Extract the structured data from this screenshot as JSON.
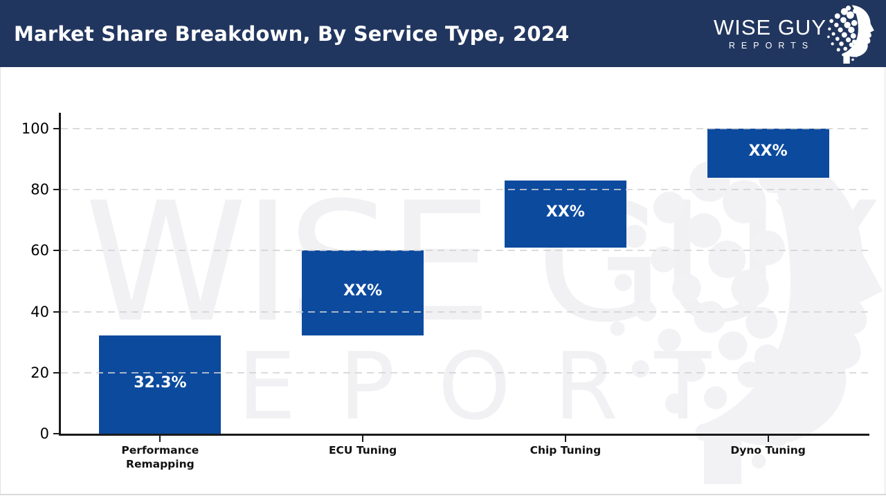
{
  "header": {
    "title": "Market Share Breakdown, By Service Type, 2024",
    "logo": {
      "line1": "WISE GUY",
      "line2": "REPORTS"
    }
  },
  "watermark": {
    "line1": "WISE GUY",
    "line2": "REPORTS"
  },
  "colors": {
    "header_bg": "#21365f",
    "bar_blue": "#0c4a9e",
    "watermark_gray": "#f1f1f4",
    "gridline": "#d9d9d9",
    "axis": "#1a1a1a"
  },
  "chart_data": {
    "type": "bar",
    "subtype": "waterfall",
    "title": "Market Share Breakdown, By Service Type, 2024",
    "categories": [
      "Performance Remapping",
      "ECU Tuning",
      "Chip Tuning",
      "Dyno Tuning"
    ],
    "category_label_lines": [
      [
        "Performance",
        "Remapping"
      ],
      [
        "ECU Tuning"
      ],
      [
        "Chip Tuning"
      ],
      [
        "Dyno Tuning"
      ]
    ],
    "segments": [
      {
        "category": "Performance Remapping",
        "from": 0,
        "to": 32.3,
        "label": "32.3%"
      },
      {
        "category": "ECU Tuning",
        "from": 32.3,
        "to": 60,
        "label": "XX%"
      },
      {
        "category": "Chip Tuning",
        "from": 61,
        "to": 83,
        "label": "XX%"
      },
      {
        "category": "Dyno Tuning",
        "from": 84,
        "to": 100,
        "label": "XX%"
      }
    ],
    "xlabel": "",
    "ylabel": "",
    "ylim": [
      0,
      100
    ],
    "yticks": [
      0,
      20,
      40,
      60,
      80,
      100
    ],
    "grid": "horizontal-dashed",
    "legend": "none"
  }
}
